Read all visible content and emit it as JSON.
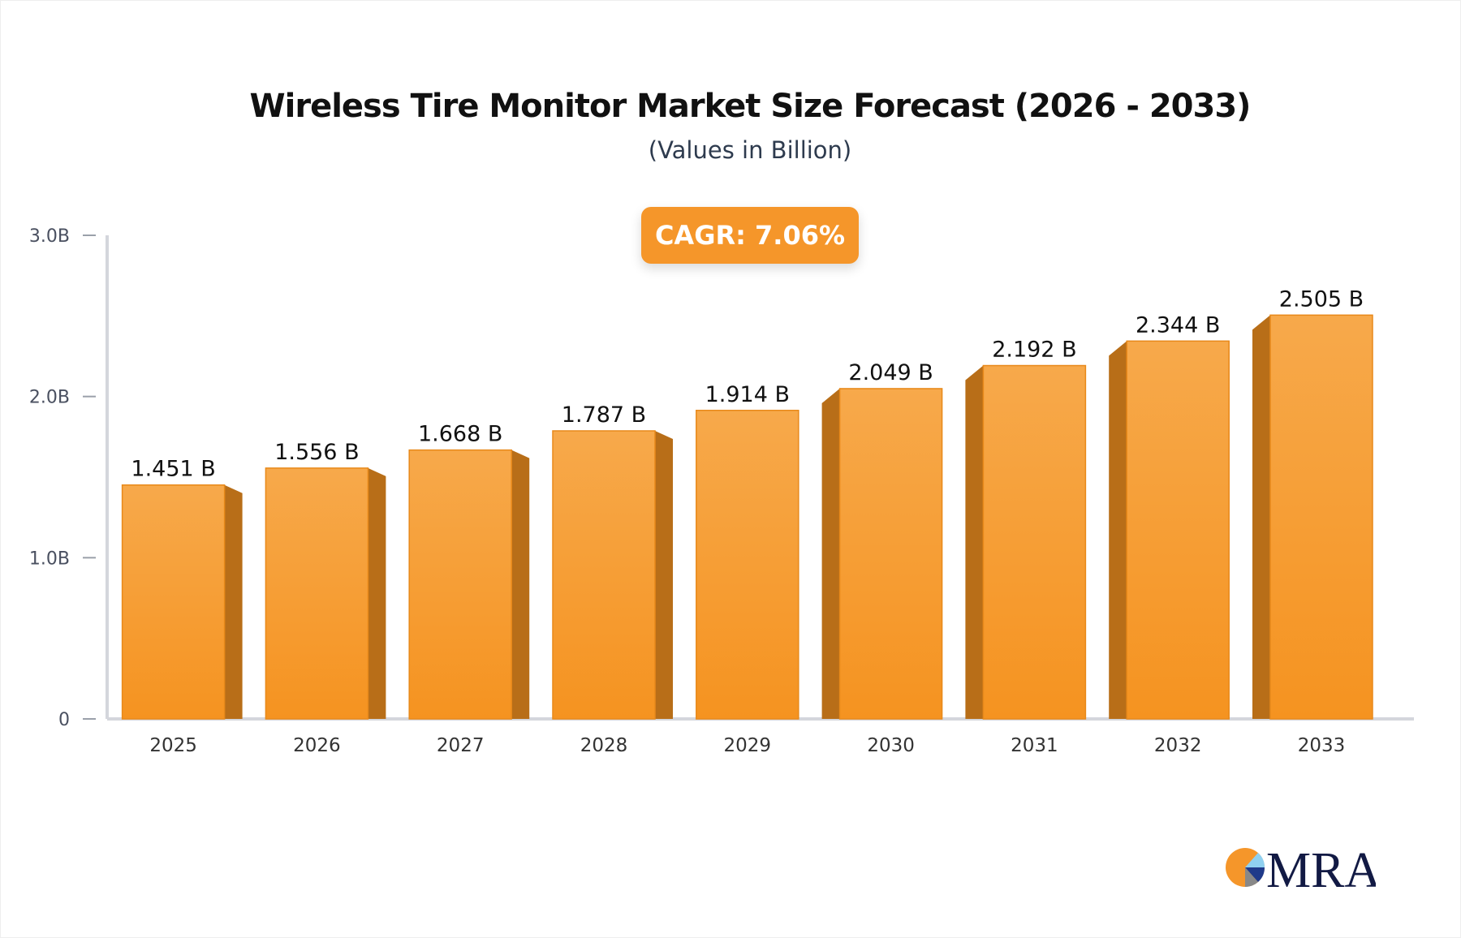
{
  "chart_data": {
    "type": "bar",
    "title": "Wireless Tire Monitor Market Size Forecast (2026 - 2033)",
    "subtitle": "(Values in Billion)",
    "annotation": "CAGR: 7.06%",
    "categories": [
      "2025",
      "2026",
      "2027",
      "2028",
      "2029",
      "2030",
      "2031",
      "2032",
      "2033"
    ],
    "values": [
      1.451,
      1.556,
      1.668,
      1.787,
      1.914,
      2.049,
      2.192,
      2.344,
      2.505
    ],
    "data_labels": [
      "1.451 B",
      "1.556 B",
      "1.668 B",
      "1.787 B",
      "1.914 B",
      "2.049 B",
      "2.192 B",
      "2.344 B",
      "2.505 B"
    ],
    "ylim": [
      0,
      3.0
    ],
    "y_ticks": [
      0,
      1.0,
      2.0,
      3.0
    ],
    "y_tick_labels": [
      "0",
      "1.0B",
      "2.0B",
      "3.0B"
    ],
    "grid": false,
    "colors": {
      "bar_top": "#f7a94b",
      "bar_bottom": "#f59320",
      "bar_side": "#b86e18",
      "axis": "#d4d6dc",
      "badge": "#f5962a"
    }
  },
  "logo": {
    "text": "MRA"
  }
}
